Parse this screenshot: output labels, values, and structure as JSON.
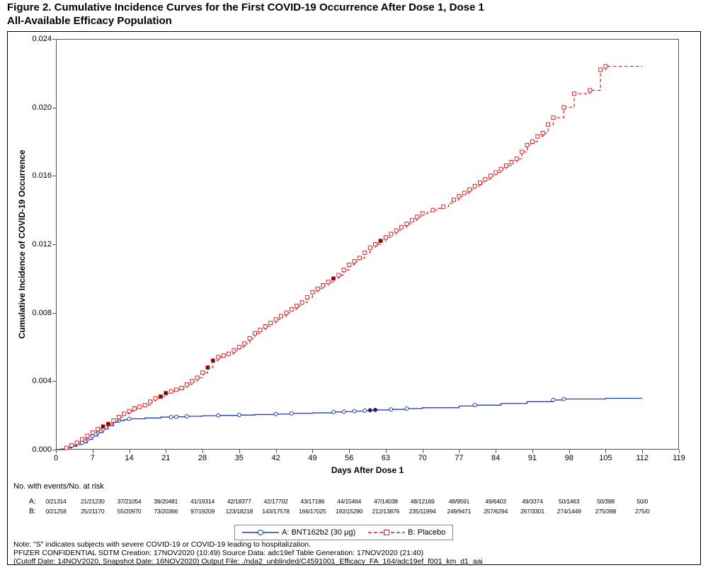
{
  "figure": {
    "title_line1": "Figure 2. Cumulative Incidence Curves for the First COVID-19 Occurrence After Dose 1, Dose 1",
    "title_line2": "All-Available Efficacy Population",
    "title_fontsize": 15
  },
  "chart": {
    "type": "line",
    "background_color": "#ffffff",
    "border_color": "#555555",
    "x_axis": {
      "title": "Days After Dose 1",
      "title_fontsize": 12,
      "min": 0,
      "max": 119,
      "ticks": [
        0,
        7,
        14,
        21,
        28,
        35,
        42,
        49,
        56,
        63,
        70,
        77,
        84,
        91,
        98,
        105,
        112,
        119
      ],
      "tick_fontsize": 11
    },
    "y_axis": {
      "title": "Cumulative Incidence of COVID-19 Occurrence",
      "title_fontsize": 12,
      "min": 0,
      "max": 0.024,
      "ticks": [
        0.0,
        0.004,
        0.008,
        0.012,
        0.016,
        0.02,
        0.024
      ],
      "tick_labels": [
        "0.000",
        "0.004",
        "0.008",
        "0.012",
        "0.016",
        "0.020",
        "0.024"
      ],
      "tick_fontsize": 11
    },
    "series": [
      {
        "name": "A: BNT162b2 (30 µg)",
        "color": "#1f3db3",
        "line_style": "solid",
        "line_width": 1.3,
        "marker": "circle",
        "marker_size": 5,
        "marker_fill": "none",
        "points": [
          [
            0,
            0.0
          ],
          [
            1,
            0.0
          ],
          [
            2,
            0.0001
          ],
          [
            3,
            0.0002
          ],
          [
            4,
            0.0003
          ],
          [
            5,
            0.0004
          ],
          [
            6,
            0.0006
          ],
          [
            7,
            0.0008
          ],
          [
            8,
            0.001
          ],
          [
            9,
            0.0012
          ],
          [
            10,
            0.0014
          ],
          [
            11,
            0.0016
          ],
          [
            12,
            0.0017
          ],
          [
            13,
            0.00175
          ],
          [
            14,
            0.0018
          ],
          [
            15,
            0.0018
          ],
          [
            17,
            0.00185
          ],
          [
            20,
            0.0019
          ],
          [
            22,
            0.0019
          ],
          [
            23,
            0.00192
          ],
          [
            25,
            0.00195
          ],
          [
            28,
            0.00198
          ],
          [
            31,
            0.002
          ],
          [
            35,
            0.00202
          ],
          [
            38,
            0.00205
          ],
          [
            42,
            0.00208
          ],
          [
            45,
            0.00212
          ],
          [
            49,
            0.00215
          ],
          [
            53,
            0.0022
          ],
          [
            55,
            0.00222
          ],
          [
            57,
            0.00225
          ],
          [
            59,
            0.00228
          ],
          [
            60,
            0.0023
          ],
          [
            61,
            0.00232
          ],
          [
            62,
            0.00232
          ],
          [
            64,
            0.00235
          ],
          [
            67,
            0.0024
          ],
          [
            70,
            0.00245
          ],
          [
            77,
            0.00255
          ],
          [
            80,
            0.0026
          ],
          [
            85,
            0.0027
          ],
          [
            90,
            0.0028
          ],
          [
            95,
            0.0029
          ],
          [
            97,
            0.00296
          ],
          [
            105,
            0.003
          ],
          [
            112,
            0.003
          ]
        ],
        "filled_markers_x": [
          60,
          61
        ],
        "marker_positions": [
          5,
          6,
          7,
          8,
          9,
          12,
          14,
          22,
          23,
          25,
          31,
          35,
          42,
          45,
          53,
          55,
          57,
          59,
          60,
          61,
          64,
          67,
          80,
          95,
          97
        ]
      },
      {
        "name": "B: Placebo",
        "color": "#d62728",
        "line_style": "dashed",
        "line_width": 1.2,
        "marker": "square",
        "marker_size": 5,
        "marker_fill": "none",
        "points": [
          [
            0,
            0.0
          ],
          [
            1,
            5e-05
          ],
          [
            2,
            0.0001
          ],
          [
            3,
            0.00025
          ],
          [
            4,
            0.0004
          ],
          [
            5,
            0.0006
          ],
          [
            6,
            0.0008
          ],
          [
            7,
            0.001
          ],
          [
            8,
            0.0012
          ],
          [
            9,
            0.00135
          ],
          [
            10,
            0.0015
          ],
          [
            11,
            0.0017
          ],
          [
            12,
            0.0019
          ],
          [
            13,
            0.0021
          ],
          [
            14,
            0.00225
          ],
          [
            15,
            0.0024
          ],
          [
            16,
            0.0025
          ],
          [
            17,
            0.0026
          ],
          [
            18,
            0.0028
          ],
          [
            19,
            0.003
          ],
          [
            20,
            0.0031
          ],
          [
            21,
            0.0033
          ],
          [
            22,
            0.0034
          ],
          [
            23,
            0.0035
          ],
          [
            24,
            0.0036
          ],
          [
            25,
            0.0038
          ],
          [
            26,
            0.004
          ],
          [
            27,
            0.0042
          ],
          [
            28,
            0.0045
          ],
          [
            29,
            0.0048
          ],
          [
            30,
            0.0052
          ],
          [
            31,
            0.0054
          ],
          [
            32,
            0.0055
          ],
          [
            33,
            0.0056
          ],
          [
            34,
            0.0058
          ],
          [
            35,
            0.006
          ],
          [
            36,
            0.0062
          ],
          [
            37,
            0.0065
          ],
          [
            38,
            0.0068
          ],
          [
            39,
            0.007
          ],
          [
            40,
            0.0072
          ],
          [
            41,
            0.0074
          ],
          [
            42,
            0.0076
          ],
          [
            43,
            0.0078
          ],
          [
            44,
            0.008
          ],
          [
            45,
            0.0082
          ],
          [
            46,
            0.0084
          ],
          [
            47,
            0.0086
          ],
          [
            48,
            0.0089
          ],
          [
            49,
            0.0092
          ],
          [
            50,
            0.0094
          ],
          [
            51,
            0.0096
          ],
          [
            52,
            0.0098
          ],
          [
            53,
            0.01
          ],
          [
            54,
            0.0102
          ],
          [
            55,
            0.0105
          ],
          [
            56,
            0.0108
          ],
          [
            57,
            0.011
          ],
          [
            58,
            0.0112
          ],
          [
            59,
            0.0115
          ],
          [
            60,
            0.0118
          ],
          [
            61,
            0.012
          ],
          [
            62,
            0.0122
          ],
          [
            63,
            0.0124
          ],
          [
            64,
            0.0126
          ],
          [
            65,
            0.0128
          ],
          [
            66,
            0.013
          ],
          [
            67,
            0.0132
          ],
          [
            68,
            0.0134
          ],
          [
            69,
            0.0136
          ],
          [
            70,
            0.0138
          ],
          [
            71,
            0.0139
          ],
          [
            72,
            0.014
          ],
          [
            73,
            0.0141
          ],
          [
            74,
            0.0142
          ],
          [
            75,
            0.0144
          ],
          [
            76,
            0.0146
          ],
          [
            77,
            0.0148
          ],
          [
            78,
            0.015
          ],
          [
            79,
            0.0152
          ],
          [
            80,
            0.0154
          ],
          [
            81,
            0.0156
          ],
          [
            82,
            0.0158
          ],
          [
            83,
            0.016
          ],
          [
            84,
            0.0162
          ],
          [
            85,
            0.0164
          ],
          [
            86,
            0.0166
          ],
          [
            87,
            0.0168
          ],
          [
            88,
            0.017
          ],
          [
            89,
            0.0174
          ],
          [
            90,
            0.0178
          ],
          [
            91,
            0.018
          ],
          [
            92,
            0.0183
          ],
          [
            93,
            0.0185
          ],
          [
            94,
            0.019
          ],
          [
            95,
            0.0194
          ],
          [
            97,
            0.02
          ],
          [
            99,
            0.0208
          ],
          [
            102,
            0.021
          ],
          [
            104,
            0.0222
          ],
          [
            105,
            0.0224
          ],
          [
            112,
            0.0224
          ]
        ],
        "filled_markers_x": [
          9,
          10,
          20,
          21,
          29,
          30,
          53,
          62
        ],
        "marker_positions": [
          2,
          3,
          4,
          5,
          6,
          7,
          8,
          9,
          10,
          11,
          12,
          13,
          14,
          15,
          16,
          17,
          18,
          19,
          20,
          21,
          22,
          23,
          24,
          25,
          26,
          27,
          28,
          29,
          30,
          31,
          32,
          33,
          34,
          35,
          36,
          37,
          38,
          39,
          40,
          41,
          42,
          43,
          44,
          45,
          46,
          47,
          48,
          49,
          50,
          51,
          52,
          53,
          54,
          55,
          56,
          57,
          58,
          59,
          60,
          61,
          62,
          63,
          64,
          65,
          66,
          67,
          68,
          69,
          70,
          72,
          74,
          76,
          77,
          78,
          79,
          80,
          81,
          82,
          83,
          84,
          85,
          86,
          87,
          88,
          89,
          90,
          91,
          92,
          93,
          94,
          95,
          97,
          99,
          102,
          104,
          105
        ]
      }
    ]
  },
  "risk_table": {
    "header": "No. with events/No. at risk",
    "header_fontsize": 11,
    "rows": [
      {
        "label": "A:",
        "cells": [
          "0/21314",
          "21/21230",
          "37/21054",
          "39/20481",
          "41/19314",
          "42/18377",
          "42/17702",
          "43/17186",
          "44/15464",
          "47/14038",
          "48/12169",
          "48/9591",
          "49/6403",
          "49/3374",
          "50/1463",
          "50/398",
          "50/0"
        ]
      },
      {
        "label": "B:",
        "cells": [
          "0/21258",
          "25/21170",
          "55/20970",
          "73/20366",
          "97/19209",
          "123/18218",
          "143/17578",
          "166/17025",
          "192/15290",
          "212/13876",
          "235/11994",
          "249/9471",
          "257/6294",
          "267/3301",
          "274/1449",
          "275/398",
          "275/0"
        ]
      }
    ],
    "cell_fontsize": 8.5
  },
  "legend": {
    "items": [
      {
        "label": "A: BNT162b2 (30 µg)",
        "color": "#1f3db3",
        "style": "solid",
        "marker": "circle"
      },
      {
        "label": "B: Placebo",
        "color": "#d62728",
        "style": "dashed",
        "marker": "square"
      }
    ],
    "fontsize": 11
  },
  "footnotes": {
    "line1": "Note: \"S\" indicates subjects with severe COVID-19 or COVID-19 leading to hospitalization.",
    "line2": "PFIZER CONFIDENTIAL SDTM Creation: 17NOV2020 (10:49) Source Data: adc19ef Table Generation: 17NOV2020 (21:40)",
    "line3": "(Cutoff Date: 14NOV2020, Snapshot Date: 16NOV2020) Output File: ./nda2_unblinded/C4591001_Efficacy_FA_164/adc19ef_f001_km_d1_aai",
    "fontsize": 10.5
  }
}
